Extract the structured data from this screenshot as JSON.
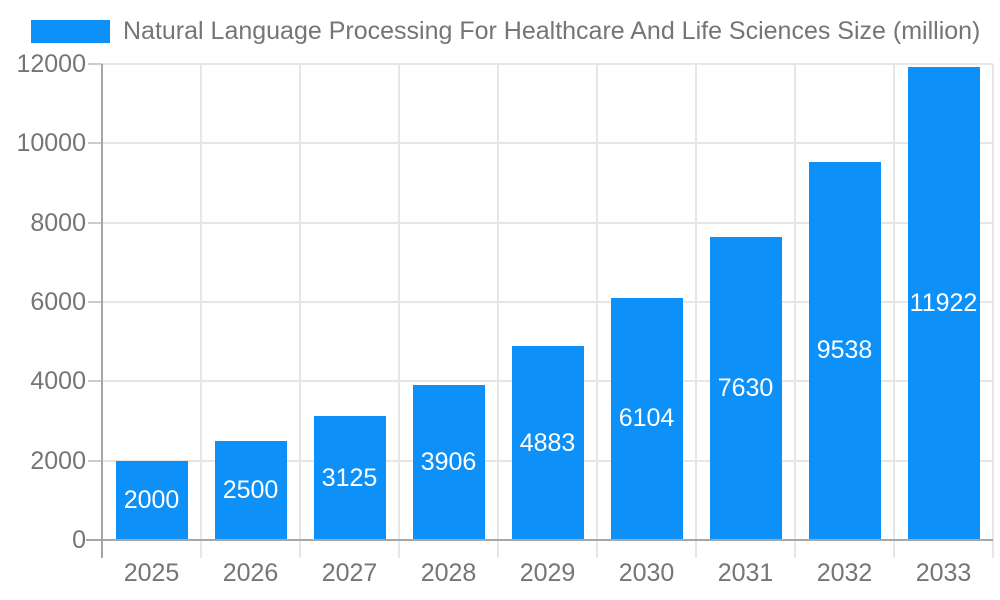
{
  "legend": {
    "label": "Natural Language Processing For Healthcare And Life Sciences Size (million)"
  },
  "chart_data": {
    "type": "bar",
    "title": "Natural Language Processing For Healthcare And Life Sciences Size (million)",
    "categories": [
      "2025",
      "2026",
      "2027",
      "2028",
      "2029",
      "2030",
      "2031",
      "2032",
      "2033"
    ],
    "values": [
      2000,
      2500,
      3125,
      3906,
      4883,
      6104,
      7630,
      9538,
      11922
    ],
    "series": [
      {
        "name": "Natural Language Processing For Healthcare And Life Sciences Size (million)",
        "values": [
          2000,
          2500,
          3125,
          3906,
          4883,
          6104,
          7630,
          9538,
          11922
        ]
      }
    ],
    "xlabel": "",
    "ylabel": "",
    "ylim": [
      0,
      12000
    ],
    "yticks": [
      0,
      2000,
      4000,
      6000,
      8000,
      10000,
      12000
    ],
    "grid": true,
    "legend_position": "top-left",
    "bar_labels_visible": true,
    "colors": {
      "bar": "#0d90f8",
      "bar_label_text": "#ffffff",
      "axis_text": "#757575",
      "axis_line": "#a6a6a6",
      "gridline": "#e6e6e6",
      "tick": "#cccccc",
      "background": "#ffffff"
    }
  }
}
